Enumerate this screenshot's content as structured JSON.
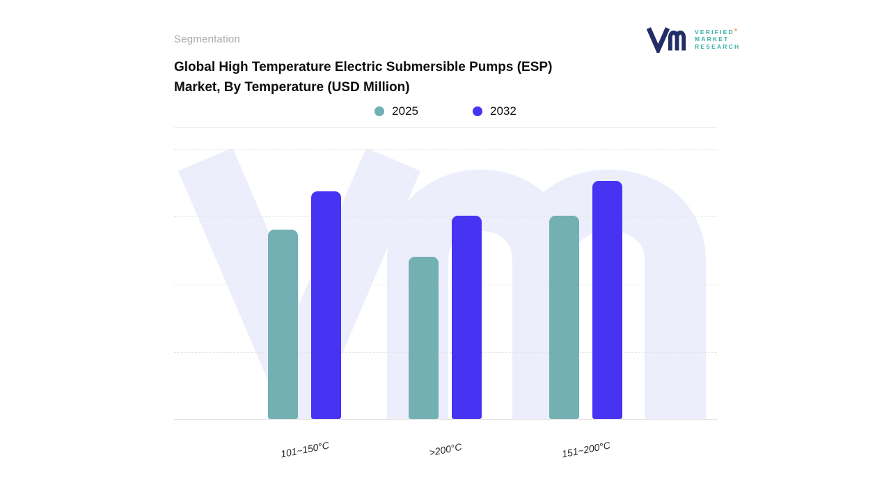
{
  "header": {
    "eyebrow": "Segmentation",
    "title_line1": "Global High Temperature Electric Submersible Pumps (ESP)",
    "title_line2": "Market, By Temperature (USD Million)"
  },
  "logo": {
    "line1": "VERIFIED",
    "line2": "MARKET",
    "line3": "RESEARCH",
    "reg": "®",
    "text_color": "#3aafa9",
    "glyph_color": "#232e66",
    "reg_color": "#f58220"
  },
  "chart_data": {
    "type": "bar",
    "categories": [
      "101~150°C",
      ">200°C",
      "151~200°C"
    ],
    "series": [
      {
        "name": "2025",
        "color": "#72b0b4",
        "values": [
          70,
          60,
          75
        ]
      },
      {
        "name": "2032",
        "color": "#4733f2",
        "values": [
          84,
          75,
          88
        ]
      }
    ],
    "title": "Global High Temperature Electric Submersible Pumps (ESP) Market, By Temperature (USD Million)",
    "xlabel": "",
    "ylabel": "",
    "ylim": [
      0,
      100
    ],
    "y_axis_labels_visible": false,
    "grid": "horizontal-dashed",
    "legend_position": "top-center",
    "watermark": "Vm",
    "watermark_color": "#edeefb"
  }
}
